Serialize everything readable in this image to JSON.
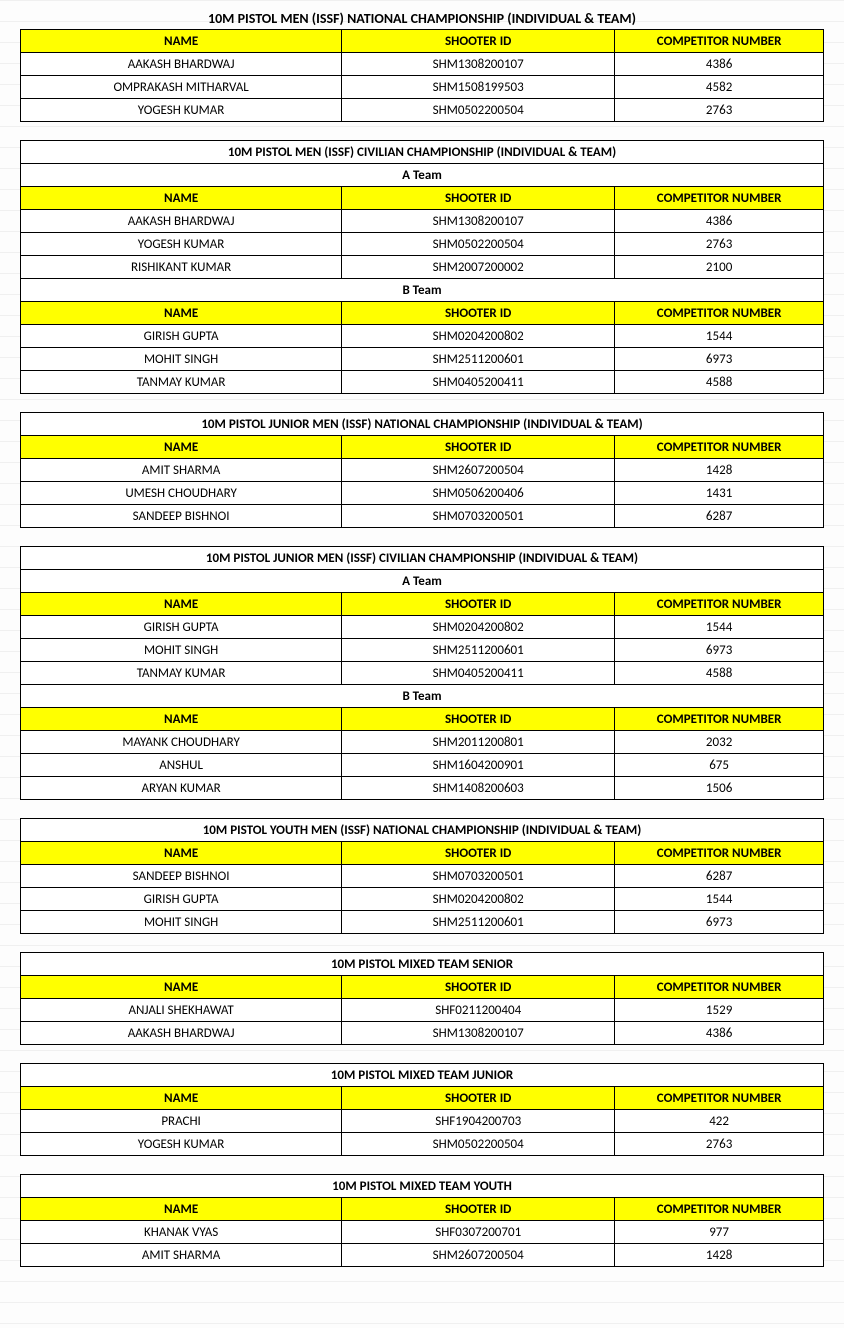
{
  "columns": {
    "name": "NAME",
    "shooter_id": "SHOOTER ID",
    "comp_no": "COMPETITOR NUMBER"
  },
  "sections": [
    {
      "title": "10M PISTOL MEN (ISSF) NATIONAL CHAMPIONSHIP (INDIVIDUAL & TEAM)",
      "title_in_table": false,
      "groups": [
        {
          "label": null,
          "rows": [
            [
              "AAKASH BHARDWAJ",
              "SHM1308200107",
              "4386"
            ],
            [
              "OMPRAKASH MITHARVAL",
              "SHM1508199503",
              "4582"
            ],
            [
              "YOGESH KUMAR",
              "SHM0502200504",
              "2763"
            ]
          ]
        }
      ]
    },
    {
      "title": "10M PISTOL MEN (ISSF) CIVILIAN CHAMPIONSHIP (INDIVIDUAL & TEAM)",
      "title_in_table": true,
      "groups": [
        {
          "label": "A Team",
          "rows": [
            [
              "AAKASH BHARDWAJ",
              "SHM1308200107",
              "4386"
            ],
            [
              "YOGESH KUMAR",
              "SHM0502200504",
              "2763"
            ],
            [
              "RISHIKANT KUMAR",
              "SHM2007200002",
              "2100"
            ]
          ]
        },
        {
          "label": "B Team",
          "rows": [
            [
              "GIRISH GUPTA",
              "SHM0204200802",
              "1544"
            ],
            [
              "MOHIT SINGH",
              "SHM2511200601",
              "6973"
            ],
            [
              "TANMAY KUMAR",
              "SHM0405200411",
              "4588"
            ]
          ]
        }
      ]
    },
    {
      "title": "10M PISTOL JUNIOR MEN (ISSF) NATIONAL CHAMPIONSHIP (INDIVIDUAL & TEAM)",
      "title_in_table": true,
      "groups": [
        {
          "label": null,
          "rows": [
            [
              "AMIT SHARMA",
              "SHM2607200504",
              "1428"
            ],
            [
              "UMESH CHOUDHARY",
              "SHM0506200406",
              "1431"
            ],
            [
              "SANDEEP BISHNOI",
              "SHM0703200501",
              "6287"
            ]
          ]
        }
      ]
    },
    {
      "title": "10M PISTOL JUNIOR MEN (ISSF) CIVILIAN CHAMPIONSHIP (INDIVIDUAL & TEAM)",
      "title_in_table": true,
      "groups": [
        {
          "label": "A Team",
          "rows": [
            [
              "GIRISH GUPTA",
              "SHM0204200802",
              "1544"
            ],
            [
              "MOHIT SINGH",
              "SHM2511200601",
              "6973"
            ],
            [
              "TANMAY KUMAR",
              "SHM0405200411",
              "4588"
            ]
          ]
        },
        {
          "label": "B Team",
          "rows": [
            [
              "MAYANK CHOUDHARY",
              "SHM2011200801",
              "2032"
            ],
            [
              "ANSHUL",
              "SHM1604200901",
              "675"
            ],
            [
              "ARYAN KUMAR",
              "SHM1408200603",
              "1506"
            ]
          ]
        }
      ]
    },
    {
      "title": "10M PISTOL YOUTH MEN (ISSF) NATIONAL CHAMPIONSHIP (INDIVIDUAL & TEAM)",
      "title_in_table": true,
      "groups": [
        {
          "label": null,
          "rows": [
            [
              "SANDEEP BISHNOI",
              "SHM0703200501",
              "6287"
            ],
            [
              "GIRISH GUPTA",
              "SHM0204200802",
              "1544"
            ],
            [
              "MOHIT SINGH",
              "SHM2511200601",
              "6973"
            ]
          ]
        }
      ]
    },
    {
      "title": "10M PISTOL MIXED TEAM SENIOR",
      "title_in_table": true,
      "groups": [
        {
          "label": null,
          "rows": [
            [
              "ANJALI SHEKHAWAT",
              "SHF0211200404",
              "1529"
            ],
            [
              "AAKASH BHARDWAJ",
              "SHM1308200107",
              "4386"
            ]
          ]
        }
      ]
    },
    {
      "title": "10M PISTOL MIXED TEAM JUNIOR",
      "title_in_table": true,
      "groups": [
        {
          "label": null,
          "rows": [
            [
              "PRACHI",
              "SHF1904200703",
              "422"
            ],
            [
              "YOGESH KUMAR",
              "SHM0502200504",
              "2763"
            ]
          ]
        }
      ]
    },
    {
      "title": "10M PISTOL MIXED TEAM YOUTH",
      "title_in_table": true,
      "groups": [
        {
          "label": null,
          "rows": [
            [
              "KHANAK VYAS",
              "SHF0307200701",
              "977"
            ],
            [
              "AMIT SHARMA",
              "SHM2607200504",
              "1428"
            ]
          ]
        }
      ]
    }
  ]
}
